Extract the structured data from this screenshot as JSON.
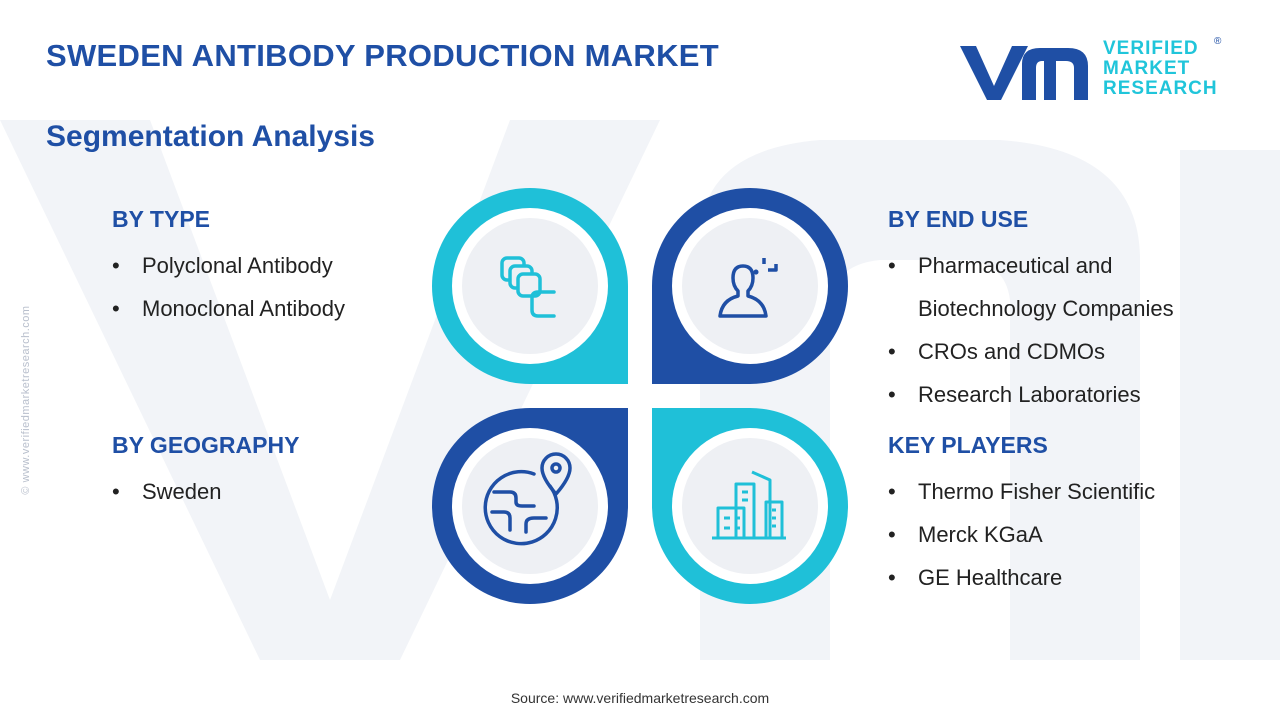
{
  "header": {
    "title": "SWEDEN ANTIBODY PRODUCTION MARKET",
    "subtitle": "Segmentation Analysis"
  },
  "logo": {
    "line1": "VERIFIED",
    "line2": "MARKET",
    "line3": "RESEARCH",
    "registered": "®",
    "colors": {
      "mark": "#1f4fa5",
      "text": "#20c5da"
    }
  },
  "side_url": "© www.verifiedmarketresearch.com",
  "segments": {
    "type": {
      "title": "BY TYPE",
      "items": [
        "Polyclonal Antibody",
        "Monoclonal Antibody"
      ]
    },
    "geography": {
      "title": "BY GEOGRAPHY",
      "items": [
        "Sweden"
      ]
    },
    "end_use": {
      "title": "BY END USE",
      "items": [
        "Pharmaceutical and Biotechnology Companies",
        "CROs and CDMOs",
        "Research Laboratories"
      ]
    },
    "key_players": {
      "title": "KEY PLAYERS",
      "items": [
        "Thermo Fisher Scientific",
        "Merck KGaA",
        "GE Healthcare"
      ]
    }
  },
  "icons": {
    "top_left": "layers-icon",
    "top_right": "user-profile-icon",
    "bottom_left": "globe-pin-icon",
    "bottom_right": "buildings-icon"
  },
  "colors": {
    "dark_blue": "#1f4fa5",
    "cyan": "#1fc0d8",
    "circle_fill": "#eef0f4"
  },
  "source": "Source: www.verifiedmarketresearch.com"
}
